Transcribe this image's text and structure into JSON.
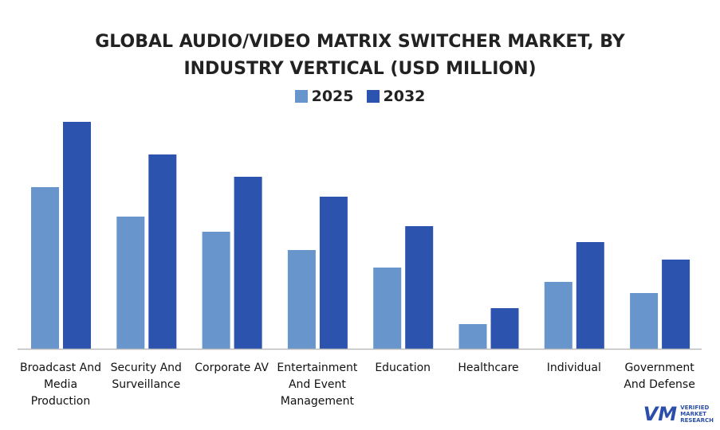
{
  "chart_data": {
    "type": "bar",
    "title": "GLOBAL AUDIO/VIDEO MATRIX SWITCHER MARKET, BY INDUSTRY VERTICAL (USD MILLION)",
    "title_lines": [
      "GLOBAL AUDIO/VIDEO MATRIX SWITCHER MARKET, BY",
      "INDUSTRY VERTICAL (USD MILLION)"
    ],
    "categories": [
      "Broadcast And Media Production",
      "Security And Surveillance",
      "Corporate AV",
      "Entertainment And Event Management",
      "Education",
      "Healthcare",
      "Individual",
      "Government And Defense"
    ],
    "category_lines": [
      [
        "Broadcast And",
        "Media",
        "Production"
      ],
      [
        "Security And",
        "Surveillance"
      ],
      [
        "Corporate AV"
      ],
      [
        "Entertainment",
        "And Event",
        "Management"
      ],
      [
        "Education"
      ],
      [
        "Healthcare"
      ],
      [
        "Individual"
      ],
      [
        "Government",
        "And Defense"
      ]
    ],
    "series": [
      {
        "name": "2025",
        "color": "#6896cc",
        "values": [
          203,
          166,
          147,
          124,
          102,
          31,
          84,
          70
        ]
      },
      {
        "name": "2032",
        "color": "#2c53ad",
        "values": [
          285,
          244,
          216,
          191,
          154,
          51,
          134,
          112
        ]
      }
    ],
    "xlabel": "",
    "ylabel": "",
    "ylim": [
      0,
      300
    ],
    "y_axis_shown": false,
    "grid": false,
    "legend": "top-center"
  },
  "logo": {
    "mark": "VM",
    "lines": [
      "VERIFIED",
      "MARKET",
      "RESEARCH"
    ]
  }
}
